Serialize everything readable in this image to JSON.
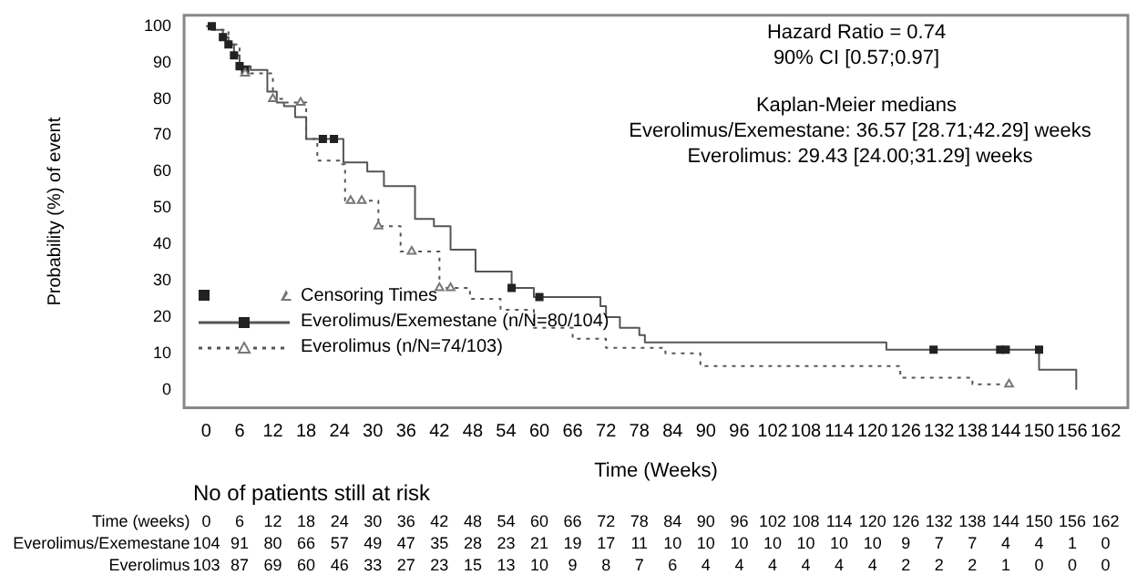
{
  "chart_data": {
    "type": "step",
    "xlabel": "Time (Weeks)",
    "ylabel": "Probability (%) of event",
    "xlim": [
      -4,
      166
    ],
    "ylim": [
      -5,
      103
    ],
    "xticks": [
      {
        "value": 0,
        "label": "0"
      },
      {
        "value": 6,
        "label": "6"
      },
      {
        "value": 12,
        "label": "12"
      },
      {
        "value": 18,
        "label": "18"
      },
      {
        "value": 24,
        "label": "24"
      },
      {
        "value": 30,
        "label": "30"
      },
      {
        "value": 36,
        "label": "36"
      },
      {
        "value": 42,
        "label": "42"
      },
      {
        "value": 48,
        "label": "48"
      },
      {
        "value": 54,
        "label": "54"
      },
      {
        "value": 60,
        "label": "60"
      },
      {
        "value": 66,
        "label": "66"
      },
      {
        "value": 72,
        "label": "72"
      },
      {
        "value": 78,
        "label": "78"
      },
      {
        "value": 84,
        "label": "84"
      },
      {
        "value": 90,
        "label": "90"
      },
      {
        "value": 96,
        "label": "96"
      },
      {
        "value": 102,
        "label": "102"
      },
      {
        "value": 108,
        "label": "108"
      },
      {
        "value": 114,
        "label": "114"
      },
      {
        "value": 120,
        "label": "120"
      },
      {
        "value": 126,
        "label": "126"
      },
      {
        "value": 132,
        "label": "132"
      },
      {
        "value": 138,
        "label": "138"
      },
      {
        "value": 144,
        "label": "144"
      },
      {
        "value": 150,
        "label": "150"
      },
      {
        "value": 156,
        "label": "156"
      },
      {
        "value": 162,
        "label": "162"
      }
    ],
    "yticks": [
      0,
      10,
      20,
      30,
      40,
      50,
      60,
      70,
      80,
      90,
      100
    ],
    "grid": false,
    "legend": "bottom left",
    "legend_title": "Censoring Times",
    "series": [
      {
        "name": "Everolimus/Exemestane (n/N=80/104)",
        "color": "#555555",
        "line_style": "solid",
        "x": [
          0,
          1,
          3,
          4,
          5,
          6,
          8,
          11,
          12.7,
          14,
          16,
          18,
          24.7,
          29,
          32,
          37.6,
          41,
          44,
          48.5,
          55,
          59,
          71,
          72,
          74.5,
          78,
          79,
          122.5,
          150,
          156.7
        ],
        "values": [
          100,
          99,
          97,
          95,
          92,
          89,
          88,
          82,
          79,
          78,
          75,
          69,
          62.5,
          60,
          56,
          47,
          45,
          38.5,
          32.5,
          28,
          25.5,
          23,
          20,
          17,
          15,
          13,
          11,
          5.5,
          0
        ]
      },
      {
        "name": "Everolimus (n/N=74/103)",
        "color": "#555555",
        "line_style": "dotted",
        "x": [
          0,
          1,
          4,
          6,
          8,
          12,
          14,
          18,
          20,
          24,
          25,
          30,
          31,
          35,
          40,
          42,
          47.5,
          53,
          59,
          66,
          72,
          82.7,
          89,
          125,
          138,
          144.6
        ],
        "values": [
          100,
          99,
          95,
          88,
          87,
          80,
          79,
          69,
          63,
          62,
          52,
          52,
          45,
          38,
          38,
          28,
          25,
          22,
          17,
          14,
          11.5,
          10,
          6.5,
          3.3,
          1.5,
          1.5
        ]
      },
      {
        "type": "scatter",
        "color": "#222222",
        "marker": "square",
        "x": [
          1,
          3,
          4,
          5,
          6,
          7,
          21,
          23,
          55,
          60,
          131,
          143,
          144,
          150
        ],
        "values": [
          100,
          97,
          95,
          92,
          89,
          88,
          69,
          69,
          28,
          25.5,
          11,
          11,
          11,
          11
        ]
      },
      {
        "type": "scatter",
        "color": "#777777",
        "marker": "triangle",
        "x": [
          7,
          12,
          17,
          26,
          28,
          31,
          37,
          42,
          44,
          144.6
        ],
        "values": [
          87,
          80,
          79,
          52,
          52,
          45,
          38,
          28,
          28,
          1.5
        ]
      }
    ],
    "annotations": [
      "Hazard Ratio = 0.74",
      "90% CI [0.57;0.97]",
      "Kaplan-Meier medians",
      "Everolimus/Exemestane: 36.57 [28.71;42.29] weeks",
      "Everolimus: 29.43 [24.00;31.29] weeks",
      "No of patients still at risk",
      "Time (weeks) 0 6 12 18 24 30 36 42 48 54 60 66 72 78 84 90 96 102 108 114 120 126 132 138 144 150 156 162",
      "Everolimus/Exemestane 104 91 80 66 57 49 47 35 28 23 21 19 17 11 10 10 10 10 10 10 10 9 7 7 4 4 1 0",
      "Everolimus 103 87 69 60 46 33 27 23 15 13 10 9 8 7 6 4 4 4 4 4 4 2 2 2 1 0 0 0"
    ]
  }
}
